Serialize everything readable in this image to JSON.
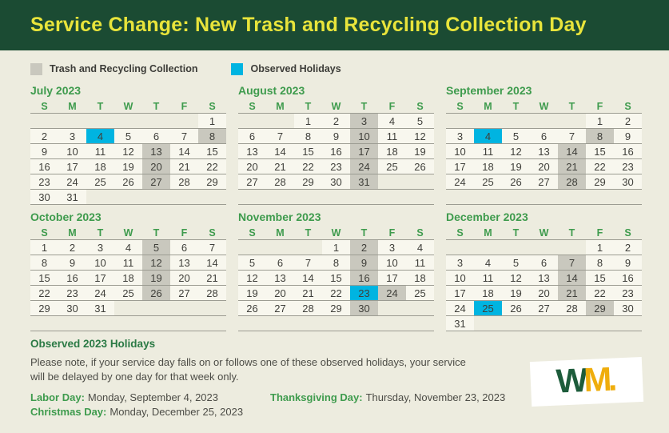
{
  "header": {
    "title": "Service Change: New Trash and Recycling Collection Day"
  },
  "legend": {
    "collection_label": "Trash and Recycling Collection",
    "holiday_label": "Observed Holidays"
  },
  "colors": {
    "page_bg": "#EDECDF",
    "header_bg": "#1B4B33",
    "title_yellow": "#E8E43B",
    "month_green": "#3E9B4D",
    "collection_gray": "#C9C8BE",
    "holiday_blue": "#00B4E1",
    "logo_green": "#1D5C3B",
    "logo_gold": "#EFAD0C"
  },
  "calendar": {
    "day_headers": [
      "S",
      "M",
      "T",
      "W",
      "T",
      "F",
      "S"
    ],
    "months": [
      {
        "name": "July 2023",
        "weeks": [
          [
            "",
            "",
            "",
            "",
            "",
            "",
            "1"
          ],
          [
            "2",
            "3",
            "4",
            "5",
            "6",
            "7",
            "8"
          ],
          [
            "9",
            "10",
            "11",
            "12",
            "13",
            "14",
            "15"
          ],
          [
            "16",
            "17",
            "18",
            "19",
            "20",
            "21",
            "22"
          ],
          [
            "23",
            "24",
            "25",
            "26",
            "27",
            "28",
            "29"
          ],
          [
            "30",
            "31",
            "",
            "",
            "",
            "",
            ""
          ]
        ],
        "gray": [
          8,
          13,
          20,
          27
        ],
        "blue": [
          4
        ]
      },
      {
        "name": "August 2023",
        "weeks": [
          [
            "",
            "",
            "1",
            "2",
            "3",
            "4",
            "5"
          ],
          [
            "6",
            "7",
            "8",
            "9",
            "10",
            "11",
            "12"
          ],
          [
            "13",
            "14",
            "15",
            "16",
            "17",
            "18",
            "19"
          ],
          [
            "20",
            "21",
            "22",
            "23",
            "24",
            "25",
            "26"
          ],
          [
            "27",
            "28",
            "29",
            "30",
            "31",
            "",
            ""
          ],
          [
            "",
            "",
            "",
            "",
            "",
            "",
            ""
          ]
        ],
        "gray": [
          3,
          10,
          17,
          24,
          31
        ],
        "blue": []
      },
      {
        "name": "September 2023",
        "weeks": [
          [
            "",
            "",
            "",
            "",
            "",
            "1",
            "2"
          ],
          [
            "3",
            "4",
            "5",
            "6",
            "7",
            "8",
            "9"
          ],
          [
            "10",
            "11",
            "12",
            "13",
            "14",
            "15",
            "16"
          ],
          [
            "17",
            "18",
            "19",
            "20",
            "21",
            "22",
            "23"
          ],
          [
            "24",
            "25",
            "26",
            "27",
            "28",
            "29",
            "30"
          ],
          [
            "",
            "",
            "",
            "",
            "",
            "",
            ""
          ]
        ],
        "gray": [
          8,
          14,
          21,
          28
        ],
        "blue": [
          4
        ]
      },
      {
        "name": "October 2023",
        "weeks": [
          [
            "1",
            "2",
            "3",
            "4",
            "5",
            "6",
            "7"
          ],
          [
            "8",
            "9",
            "10",
            "11",
            "12",
            "13",
            "14"
          ],
          [
            "15",
            "16",
            "17",
            "18",
            "19",
            "20",
            "21"
          ],
          [
            "22",
            "23",
            "24",
            "25",
            "26",
            "27",
            "28"
          ],
          [
            "29",
            "30",
            "31",
            "",
            "",
            "",
            ""
          ],
          [
            "",
            "",
            "",
            "",
            "",
            "",
            ""
          ]
        ],
        "gray": [
          5,
          12,
          19,
          26
        ],
        "blue": []
      },
      {
        "name": "November 2023",
        "weeks": [
          [
            "",
            "",
            "",
            "1",
            "2",
            "3",
            "4"
          ],
          [
            "5",
            "6",
            "7",
            "8",
            "9",
            "10",
            "11"
          ],
          [
            "12",
            "13",
            "14",
            "15",
            "16",
            "17",
            "18"
          ],
          [
            "19",
            "20",
            "21",
            "22",
            "23",
            "24",
            "25"
          ],
          [
            "26",
            "27",
            "28",
            "29",
            "30",
            "",
            ""
          ],
          [
            "",
            "",
            "",
            "",
            "",
            "",
            ""
          ]
        ],
        "gray": [
          2,
          9,
          16,
          24,
          30
        ],
        "blue": [
          23
        ]
      },
      {
        "name": "December 2023",
        "weeks": [
          [
            "",
            "",
            "",
            "",
            "",
            "1",
            "2"
          ],
          [
            "3",
            "4",
            "5",
            "6",
            "7",
            "8",
            "9"
          ],
          [
            "10",
            "11",
            "12",
            "13",
            "14",
            "15",
            "16"
          ],
          [
            "17",
            "18",
            "19",
            "20",
            "21",
            "22",
            "23"
          ],
          [
            "24",
            "25",
            "26",
            "27",
            "28",
            "29",
            "30"
          ],
          [
            "31",
            "",
            "",
            "",
            "",
            "",
            ""
          ]
        ],
        "gray": [
          7,
          14,
          21,
          29
        ],
        "blue": [
          25
        ]
      }
    ]
  },
  "footer": {
    "heading": "Observed 2023 Holidays",
    "note": "Please note, if your service day falls on or follows one of these observed holidays, your service will be delayed by one day for that week only.",
    "holidays": [
      {
        "label": "Labor Day:",
        "value": "Monday, September 4, 2023"
      },
      {
        "label": "Thanksgiving Day:",
        "value": "Thursday, November 23, 2023"
      },
      {
        "label": "Christmas Day:",
        "value": "Monday, December 25, 2023"
      }
    ]
  },
  "logo": {
    "w": "W",
    "m": "M",
    "dot": "."
  }
}
